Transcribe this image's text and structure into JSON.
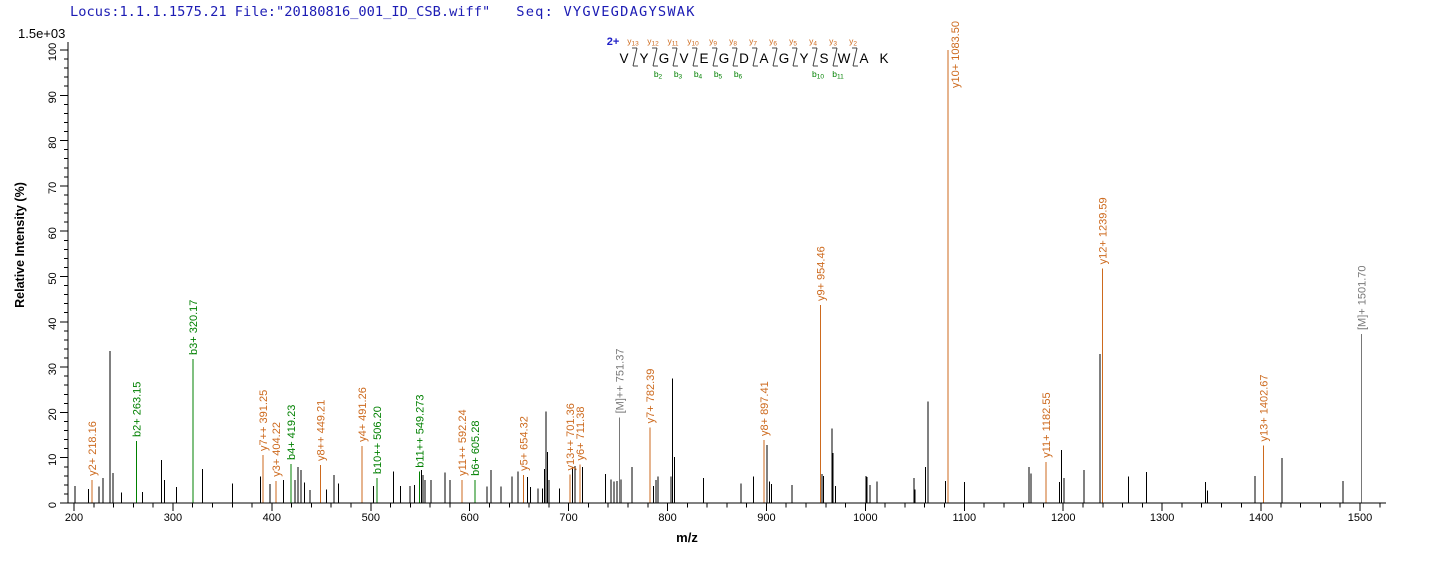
{
  "header": {
    "locus_file": "Locus:1.1.1.1575.21 File:\"20180816_001_ID_CSB.wiff\"",
    "seq_text": "Seq: VYGVEGDAGYSWAK"
  },
  "colors": {
    "y_ion": "#cd6a1e",
    "b_ion": "#008000",
    "precursor_ion": "#787878",
    "peak": "#000000",
    "header_text": "#1c1cb4",
    "axis": "#000000"
  },
  "chart_data": {
    "type": "bar",
    "xlabel": "m/z",
    "ylabel": "Relative  Intensity (%)",
    "intensity_scale_label": "1.5e+03",
    "xlim": [
      194,
      1526
    ],
    "ylim": [
      0,
      100
    ],
    "x_tick_start": 200,
    "x_tick_end": 1500,
    "x_tick_step": 100,
    "x_minor_step": 20,
    "y_tick_step": 10,
    "y_minor_step": 2,
    "peptide_diagram": {
      "charge_label": "2+",
      "residues": [
        "V",
        "Y",
        "G",
        "V",
        "E",
        "G",
        "D",
        "A",
        "G",
        "Y",
        "S",
        "W",
        "A",
        "K"
      ],
      "separators": [
        {
          "after_residue": 1,
          "y_label": "y13",
          "b_label": ""
        },
        {
          "after_residue": 2,
          "y_label": "y12",
          "b_label": "b2"
        },
        {
          "after_residue": 3,
          "y_label": "y11",
          "b_label": "b3"
        },
        {
          "after_residue": 4,
          "y_label": "y10",
          "b_label": "b4"
        },
        {
          "after_residue": 5,
          "y_label": "y9",
          "b_label": "b5"
        },
        {
          "after_residue": 6,
          "y_label": "y8",
          "b_label": "b6"
        },
        {
          "after_residue": 7,
          "y_label": "y7",
          "b_label": ""
        },
        {
          "after_residue": 8,
          "y_label": "y6",
          "b_label": ""
        },
        {
          "after_residue": 9,
          "y_label": "y5",
          "b_label": ""
        },
        {
          "after_residue": 10,
          "y_label": "y4",
          "b_label": "b10"
        },
        {
          "after_residue": 11,
          "y_label": "y3",
          "b_label": "b11"
        },
        {
          "after_residue": 12,
          "y_label": "y2",
          "b_label": ""
        }
      ]
    },
    "annotated_peaks": [
      {
        "label": "y2+ 218.16",
        "mz": 218.16,
        "intensity": 5.1,
        "series": "y"
      },
      {
        "label": "b2+ 263.15",
        "mz": 263.15,
        "intensity": 13.7,
        "series": "b"
      },
      {
        "label": "b3+ 320.17",
        "mz": 320.17,
        "intensity": 31.8,
        "series": "b"
      },
      {
        "label": "y7++ 391.25",
        "mz": 391.25,
        "intensity": 10.6,
        "series": "y"
      },
      {
        "label": "y3+ 404.22",
        "mz": 404.22,
        "intensity": 4.9,
        "series": "y"
      },
      {
        "label": "b4+ 419.23",
        "mz": 419.23,
        "intensity": 8.6,
        "series": "b"
      },
      {
        "label": "y8++ 449.21",
        "mz": 449.21,
        "intensity": 8.4,
        "series": "y"
      },
      {
        "label": "y4+ 491.26",
        "mz": 491.26,
        "intensity": 12.6,
        "series": "y"
      },
      {
        "label": "b10++ 506.20",
        "mz": 506.2,
        "intensity": 5.5,
        "series": "b"
      },
      {
        "label": "b11++ 549.273",
        "mz": 549.273,
        "intensity": 6.9,
        "series": "b"
      },
      {
        "label": "y11++ 592.24",
        "mz": 592.24,
        "intensity": 5.1,
        "series": "y"
      },
      {
        "label": "b6+ 605.28",
        "mz": 605.28,
        "intensity": 5.1,
        "series": "b"
      },
      {
        "label": "y5+ 654.32",
        "mz": 654.32,
        "intensity": 6.2,
        "series": "y"
      },
      {
        "label": "y13++ 701.36",
        "mz": 701.36,
        "intensity": 6.3,
        "series": "y"
      },
      {
        "label": "y6+ 711.38",
        "mz": 711.38,
        "intensity": 8.5,
        "series": "y"
      },
      {
        "label": "[M]++ 751.37",
        "mz": 751.37,
        "intensity": 18.9,
        "series": "M"
      },
      {
        "label": "y7+ 782.39",
        "mz": 782.39,
        "intensity": 16.7,
        "series": "y"
      },
      {
        "label": "y8+ 897.41",
        "mz": 897.41,
        "intensity": 13.9,
        "series": "y"
      },
      {
        "label": "y9+ 954.46",
        "mz": 954.46,
        "intensity": 43.7,
        "series": "y"
      },
      {
        "label": "y10+ 1083.50",
        "mz": 1083.5,
        "intensity": 100,
        "series": "y"
      },
      {
        "label": "y11+ 1182.55",
        "mz": 1182.55,
        "intensity": 9.1,
        "series": "y"
      },
      {
        "label": "y12+ 1239.59",
        "mz": 1239.59,
        "intensity": 51.8,
        "series": "y"
      },
      {
        "label": "y13+ 1402.67",
        "mz": 1402.67,
        "intensity": 12.7,
        "series": "y"
      },
      {
        "label": "[M]+ 1501.70",
        "mz": 1501.7,
        "intensity": 37.3,
        "series": "M"
      }
    ],
    "peaks": [
      [
        201,
        3.8
      ],
      [
        214.5,
        3.1
      ],
      [
        225.5,
        3.6
      ],
      [
        229.5,
        5.5
      ],
      [
        236.5,
        33.6
      ],
      [
        239.5,
        6.6
      ],
      [
        248,
        2.3
      ],
      [
        269,
        2.4
      ],
      [
        288.5,
        9.5
      ],
      [
        291.3,
        5.1
      ],
      [
        303.8,
        3.5
      ],
      [
        330,
        7.5
      ],
      [
        360.4,
        4.3
      ],
      [
        388.3,
        5.8
      ],
      [
        398.2,
        4.2
      ],
      [
        411.6,
        5.1
      ],
      [
        423.4,
        5.1
      ],
      [
        426.2,
        7.9
      ],
      [
        429.5,
        7.3
      ],
      [
        432.9,
        4.5
      ],
      [
        438.6,
        2.9
      ],
      [
        455.4,
        3
      ],
      [
        463,
        6.2
      ],
      [
        467.2,
        4.3
      ],
      [
        502.6,
        3.8
      ],
      [
        522.9,
        6.9
      ],
      [
        530.3,
        3.8
      ],
      [
        539.7,
        3.8
      ],
      [
        544.1,
        4
      ],
      [
        551.5,
        7.3
      ],
      [
        553,
        6.2
      ],
      [
        555,
        5.1
      ],
      [
        561,
        5.1
      ],
      [
        575,
        6.7
      ],
      [
        580,
        5.1
      ],
      [
        617.3,
        3.6
      ],
      [
        621.4,
        7.3
      ],
      [
        631.8,
        3.6
      ],
      [
        642.6,
        5.8
      ],
      [
        648.7,
        6.9
      ],
      [
        658.3,
        5.7
      ],
      [
        661.7,
        3.5
      ],
      [
        668.8,
        3.2
      ],
      [
        673.4,
        3.2
      ],
      [
        675.8,
        7.5
      ],
      [
        677.2,
        20.2
      ],
      [
        678.9,
        11.3
      ],
      [
        680.2,
        5.1
      ],
      [
        690.7,
        3.2
      ],
      [
        703.8,
        8
      ],
      [
        706.3,
        8.2
      ],
      [
        713.9,
        8
      ],
      [
        737.5,
        6.4
      ],
      [
        742.7,
        5.2
      ],
      [
        746,
        4.7
      ],
      [
        748.7,
        4.9
      ],
      [
        753,
        5.2
      ],
      [
        764,
        7.9
      ],
      [
        786,
        3.8
      ],
      [
        788.4,
        5.1
      ],
      [
        790.6,
        5.8
      ],
      [
        803.6,
        5.8
      ],
      [
        805,
        27.5
      ],
      [
        807,
        10.2
      ],
      [
        836.3,
        5.5
      ],
      [
        874.2,
        4.3
      ],
      [
        886.9,
        5.8
      ],
      [
        900.5,
        12.8
      ],
      [
        903,
        4.7
      ],
      [
        905,
        4.2
      ],
      [
        925.6,
        4
      ],
      [
        956,
        6.4
      ],
      [
        957.5,
        6
      ],
      [
        966,
        16.5
      ],
      [
        967.5,
        11
      ],
      [
        969.7,
        3.8
      ],
      [
        1000.5,
        6
      ],
      [
        1001.8,
        5.7
      ],
      [
        1004.8,
        4
      ],
      [
        1011.9,
        4.7
      ],
      [
        1049,
        5.5
      ],
      [
        1050.3,
        3
      ],
      [
        1061,
        8
      ],
      [
        1063.2,
        22.4
      ],
      [
        1081,
        4.9
      ],
      [
        1100,
        4.6
      ],
      [
        1165.5,
        8
      ],
      [
        1167.5,
        6.5
      ],
      [
        1196,
        4.6
      ],
      [
        1198,
        11.7
      ],
      [
        1201,
        5.5
      ],
      [
        1221,
        7.3
      ],
      [
        1237.2,
        32.9
      ],
      [
        1266,
        5.8
      ],
      [
        1284,
        6.8
      ],
      [
        1344,
        4.6
      ],
      [
        1345.8,
        2.8
      ],
      [
        1394,
        6
      ],
      [
        1421,
        9.9
      ],
      [
        1483,
        4.9
      ]
    ]
  }
}
